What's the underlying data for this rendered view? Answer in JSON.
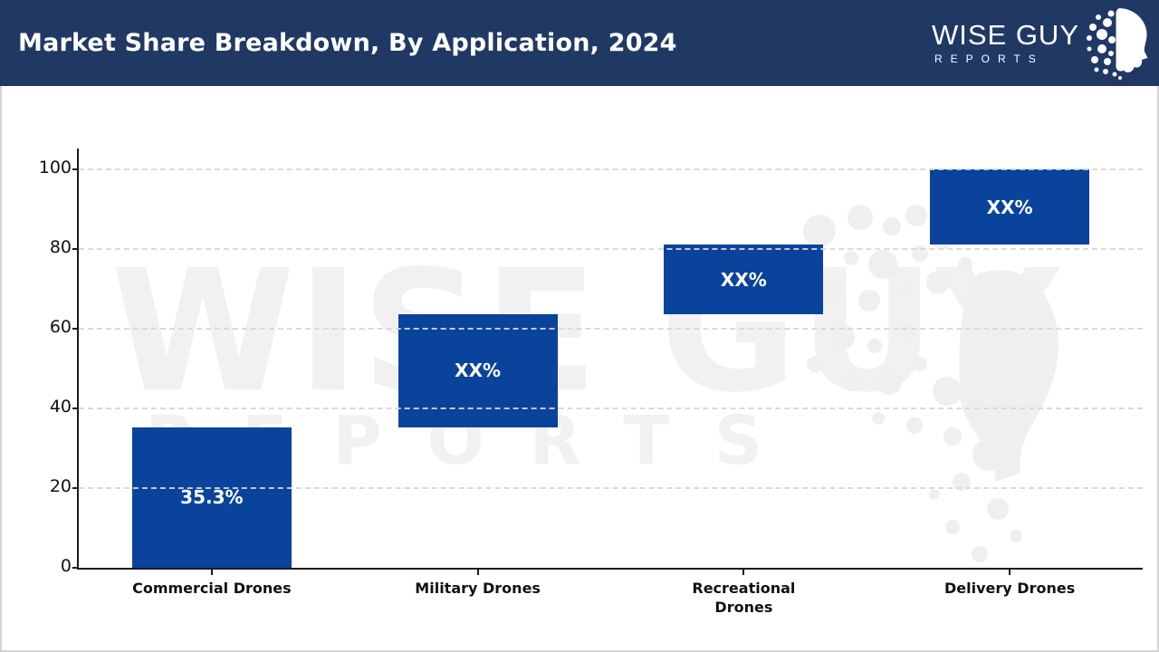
{
  "header": {
    "title": "Market Share Breakdown, By Application, 2024",
    "bg_color": "#203864",
    "logo": {
      "line1": "WISE GUY",
      "line2": "REPORTS"
    }
  },
  "watermark": {
    "line1": "WISE GUY",
    "line2": "REPORTS"
  },
  "chart_data": {
    "type": "bar",
    "subtype": "floating_segment_waterfall",
    "title": "Market Share Breakdown, By Application, 2024",
    "categories": [
      "Commercial Drones",
      "Military Drones",
      "Recreational Drones",
      "Delivery Drones"
    ],
    "tick_labels": [
      "Commercial Drones",
      "Military Drones",
      "Recreational\nDrones",
      "Delivery Drones"
    ],
    "bars": [
      {
        "category": "Commercial Drones",
        "start": 0,
        "end": 35.3,
        "label": "35.3%"
      },
      {
        "category": "Military Drones",
        "start": 35.3,
        "end": 63.6,
        "label": "XX%"
      },
      {
        "category": "Recreational Drones",
        "start": 63.6,
        "end": 81.1,
        "label": "XX%"
      },
      {
        "category": "Delivery Drones",
        "start": 81.1,
        "end": 100,
        "label": "XX%"
      }
    ],
    "ylim": [
      0,
      100
    ],
    "yticks": [
      0,
      20,
      40,
      60,
      80,
      100
    ],
    "xlabel": "",
    "ylabel": "",
    "grid": "horizontal-dashed",
    "legend": "none",
    "bar_color": "#09439B",
    "label_color": "#ffffff",
    "axis_color": "#1a1a1a",
    "grid_color": "#d7d7d7"
  }
}
